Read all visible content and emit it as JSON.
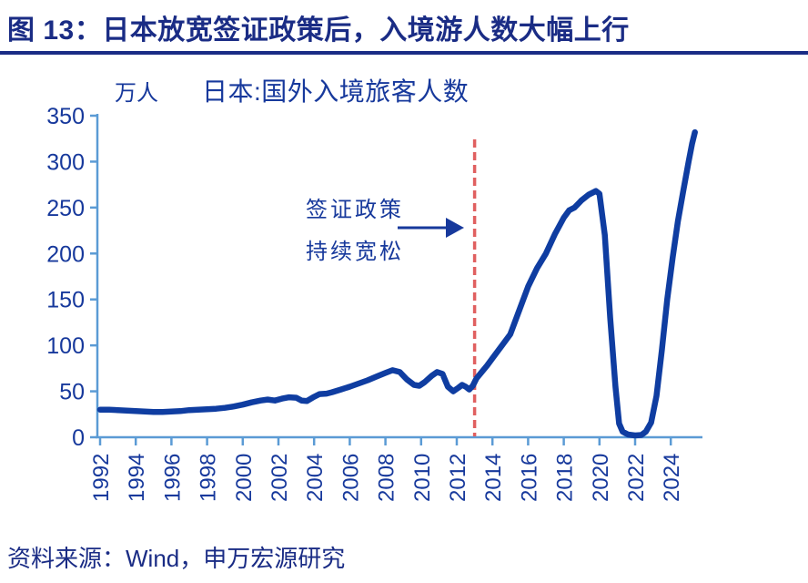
{
  "header": {
    "title": "图 13：日本放宽签证政策后，入境游人数大幅上行"
  },
  "footer": {
    "source": "资料来源：Wind，申万宏源研究"
  },
  "chart": {
    "unit_label": "万人",
    "series_title": "日本:国外入境旅客人数",
    "annotation": {
      "line1": "签证政策",
      "line2": "持续宽松"
    }
  },
  "colors": {
    "title_navy": "#1a2c85",
    "chart_text": "#17399c",
    "data_line": "#0f3da1",
    "axis_blue": "#5b9bd5",
    "event_line_red": "#e06060",
    "background": "#ffffff"
  },
  "chart_data": {
    "type": "line",
    "title": "日本:国外入境旅客人数",
    "unit": "万人",
    "xlabel": "",
    "ylabel": "万人",
    "x_axis": {
      "ticks": [
        1992,
        1994,
        1996,
        1998,
        2000,
        2002,
        2004,
        2006,
        2008,
        2010,
        2012,
        2014,
        2016,
        2018,
        2020,
        2022,
        2024
      ],
      "range": [
        1991.8,
        2025.8
      ],
      "tick_label_rotation": -90
    },
    "y_axis": {
      "ticks": [
        0,
        50,
        100,
        150,
        200,
        250,
        300,
        350
      ],
      "range": [
        0,
        350
      ]
    },
    "grid": false,
    "legend_position": "top-center",
    "event_line": {
      "x": 2013,
      "style": "dashed",
      "color": "#e06060",
      "label": "签证政策持续宽松"
    },
    "annotation": {
      "text_lines": [
        "签证政策",
        "持续宽松"
      ],
      "arrow": "points-right-to-event-line"
    },
    "series": [
      {
        "name": "日本:国外入境旅客人数",
        "points": [
          [
            1992.0,
            30
          ],
          [
            1992.5,
            30
          ],
          [
            1993.0,
            29.5
          ],
          [
            1993.5,
            29
          ],
          [
            1994.0,
            28.5
          ],
          [
            1994.5,
            28
          ],
          [
            1995.0,
            27.5
          ],
          [
            1995.5,
            27.5
          ],
          [
            1996.0,
            28
          ],
          [
            1996.5,
            28.5
          ],
          [
            1997.0,
            29.5
          ],
          [
            1997.5,
            30
          ],
          [
            1998.0,
            30.5
          ],
          [
            1998.5,
            31
          ],
          [
            1999.0,
            32
          ],
          [
            1999.5,
            33.5
          ],
          [
            2000.0,
            35.5
          ],
          [
            2000.5,
            38
          ],
          [
            2001.0,
            40
          ],
          [
            2001.4,
            41
          ],
          [
            2001.8,
            40
          ],
          [
            2002.2,
            42
          ],
          [
            2002.6,
            43.5
          ],
          [
            2003.0,
            43
          ],
          [
            2003.3,
            40
          ],
          [
            2003.6,
            39.5
          ],
          [
            2004.0,
            44
          ],
          [
            2004.3,
            47
          ],
          [
            2004.7,
            47.5
          ],
          [
            2005.0,
            49
          ],
          [
            2005.5,
            52
          ],
          [
            2006.0,
            55
          ],
          [
            2006.5,
            58.5
          ],
          [
            2007.0,
            62
          ],
          [
            2007.5,
            66
          ],
          [
            2008.0,
            70
          ],
          [
            2008.4,
            73
          ],
          [
            2008.8,
            71
          ],
          [
            2009.2,
            63
          ],
          [
            2009.6,
            57
          ],
          [
            2009.9,
            56
          ],
          [
            2010.2,
            60
          ],
          [
            2010.6,
            67
          ],
          [
            2010.9,
            71
          ],
          [
            2011.2,
            69
          ],
          [
            2011.5,
            55
          ],
          [
            2011.8,
            50
          ],
          [
            2012.1,
            54
          ],
          [
            2012.3,
            57
          ],
          [
            2012.5,
            55
          ],
          [
            2012.7,
            52
          ],
          [
            2012.9,
            56
          ],
          [
            2013.1,
            64
          ],
          [
            2013.4,
            71
          ],
          [
            2013.7,
            78
          ],
          [
            2014.0,
            86
          ],
          [
            2014.5,
            99
          ],
          [
            2015.0,
            112
          ],
          [
            2015.5,
            138
          ],
          [
            2016.0,
            164
          ],
          [
            2016.5,
            184
          ],
          [
            2017.0,
            200
          ],
          [
            2017.5,
            221
          ],
          [
            2018.0,
            239
          ],
          [
            2018.3,
            247
          ],
          [
            2018.6,
            250
          ],
          [
            2019.0,
            258
          ],
          [
            2019.4,
            264
          ],
          [
            2019.8,
            268
          ],
          [
            2020.0,
            265
          ],
          [
            2020.3,
            220
          ],
          [
            2020.6,
            130
          ],
          [
            2020.9,
            55
          ],
          [
            2021.1,
            15
          ],
          [
            2021.3,
            6
          ],
          [
            2021.6,
            3
          ],
          [
            2022.0,
            2
          ],
          [
            2022.35,
            2.5
          ],
          [
            2022.6,
            6
          ],
          [
            2022.9,
            16
          ],
          [
            2023.2,
            45
          ],
          [
            2023.5,
            95
          ],
          [
            2023.8,
            150
          ],
          [
            2024.1,
            195
          ],
          [
            2024.4,
            235
          ],
          [
            2024.7,
            268
          ],
          [
            2025.0,
            300
          ],
          [
            2025.2,
            320
          ],
          [
            2025.35,
            332
          ]
        ]
      }
    ]
  }
}
